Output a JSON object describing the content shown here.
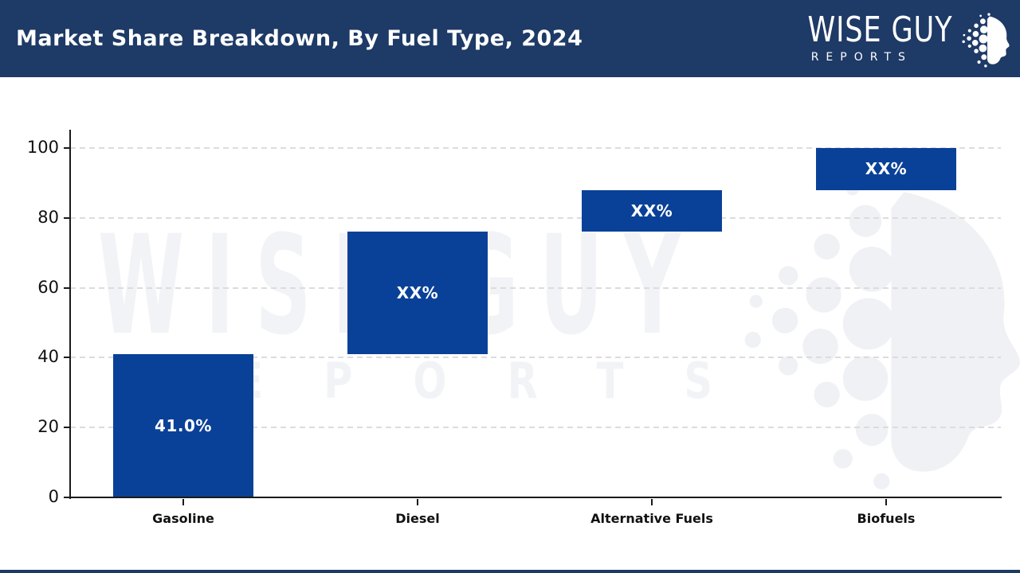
{
  "header": {
    "title": "Market Share Breakdown, By Fuel Type, 2024"
  },
  "logo": {
    "line1": "WISE GUY",
    "line2": "REPORTS"
  },
  "watermark": {
    "line1": "WISE GUY",
    "line2": "REPORTS"
  },
  "colors": {
    "header_bg": "#1e3a66",
    "bar_blue": "#0a4198",
    "grid": "#dcdcdc",
    "axis": "#1a1a1a",
    "watermark": "#f2f3f6",
    "bar_label": "#ffffff"
  },
  "chart_data": {
    "type": "bar",
    "subtype": "waterfall",
    "title": "Market Share Breakdown, By Fuel Type, 2024",
    "categories": [
      "Gasoline",
      "Diesel",
      "Alternative Fuels",
      "Biofuels"
    ],
    "segments": [
      {
        "category": "Gasoline",
        "start": 0,
        "end": 41,
        "value_pct": 41.0,
        "label": "41.0%"
      },
      {
        "category": "Diesel",
        "start": 41,
        "end": 76,
        "value_pct": 35.0,
        "label": "XX%"
      },
      {
        "category": "Alternative Fuels",
        "start": 76,
        "end": 88,
        "value_pct": 12.0,
        "label": "XX%"
      },
      {
        "category": "Biofuels",
        "start": 88,
        "end": 100,
        "value_pct": 12.0,
        "label": "XX%"
      }
    ],
    "y_ticks": [
      0,
      20,
      40,
      60,
      80,
      100
    ],
    "y_tick_labels": [
      "0",
      "20",
      "40",
      "60",
      "80",
      "100"
    ],
    "ylim": [
      0,
      100
    ],
    "xlabel": "",
    "ylabel": "",
    "grid": "horizontal-dashed",
    "legend": "none",
    "bar_color": "#0a4198",
    "bar_label_color": "#ffffff"
  }
}
